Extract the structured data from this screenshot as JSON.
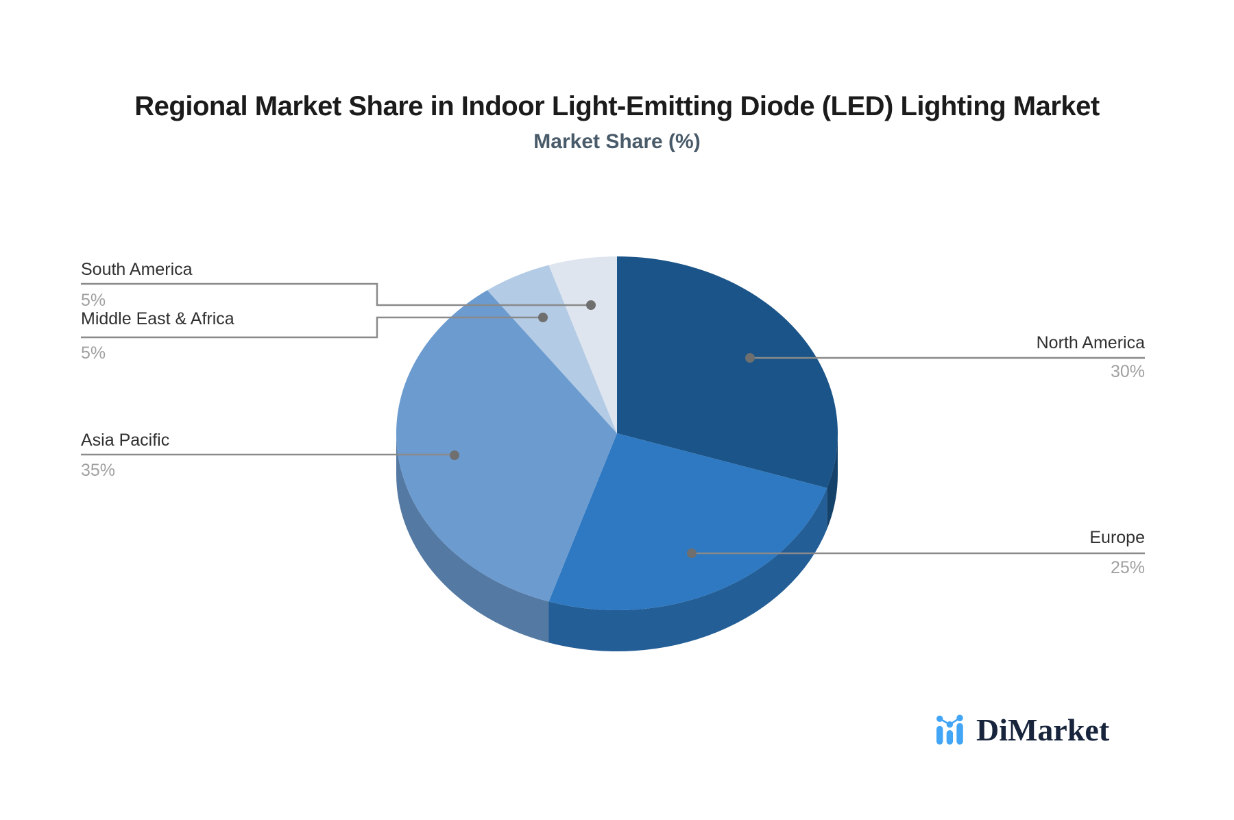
{
  "title": "Regional Market Share in Indoor Light-Emitting Diode (LED) Lighting Market",
  "subtitle": "Market Share (%)",
  "chart_data": {
    "type": "pie",
    "style": "3d",
    "title": "Regional Market Share in Indoor Light-Emitting Diode (LED) Lighting Market",
    "subtitle": "Market Share (%)",
    "start_angle_deg": 0,
    "direction": "clockwise",
    "legend_position": "none",
    "slices": [
      {
        "label": "North America",
        "value": 30,
        "pct_label": "30%",
        "color": "#1B5488",
        "label_side": "right"
      },
      {
        "label": "Europe",
        "value": 25,
        "pct_label": "25%",
        "color": "#2E79C1",
        "label_side": "right"
      },
      {
        "label": "Asia Pacific",
        "value": 35,
        "pct_label": "35%",
        "color": "#6C9BD0",
        "label_side": "left"
      },
      {
        "label": "Middle East & Africa",
        "value": 5,
        "pct_label": "5%",
        "color": "#B3CBE4",
        "label_side": "left"
      },
      {
        "label": "South America",
        "value": 5,
        "pct_label": "5%",
        "color": "#DEE5EF",
        "label_side": "left"
      }
    ]
  },
  "logo": {
    "text": "DiMarket",
    "icon": "bar-chart-trend-icon",
    "accent_color": "#42A5F5",
    "text_color": "#18243C"
  },
  "colors": {
    "background": "#FFFFFF",
    "title": "#1B1B1B",
    "subtitle": "#495A68",
    "label_text": "#303030",
    "pct_text": "#A0A0A0",
    "leader_line": "#8A8A8A",
    "leader_dot": "#6F6F6F"
  }
}
